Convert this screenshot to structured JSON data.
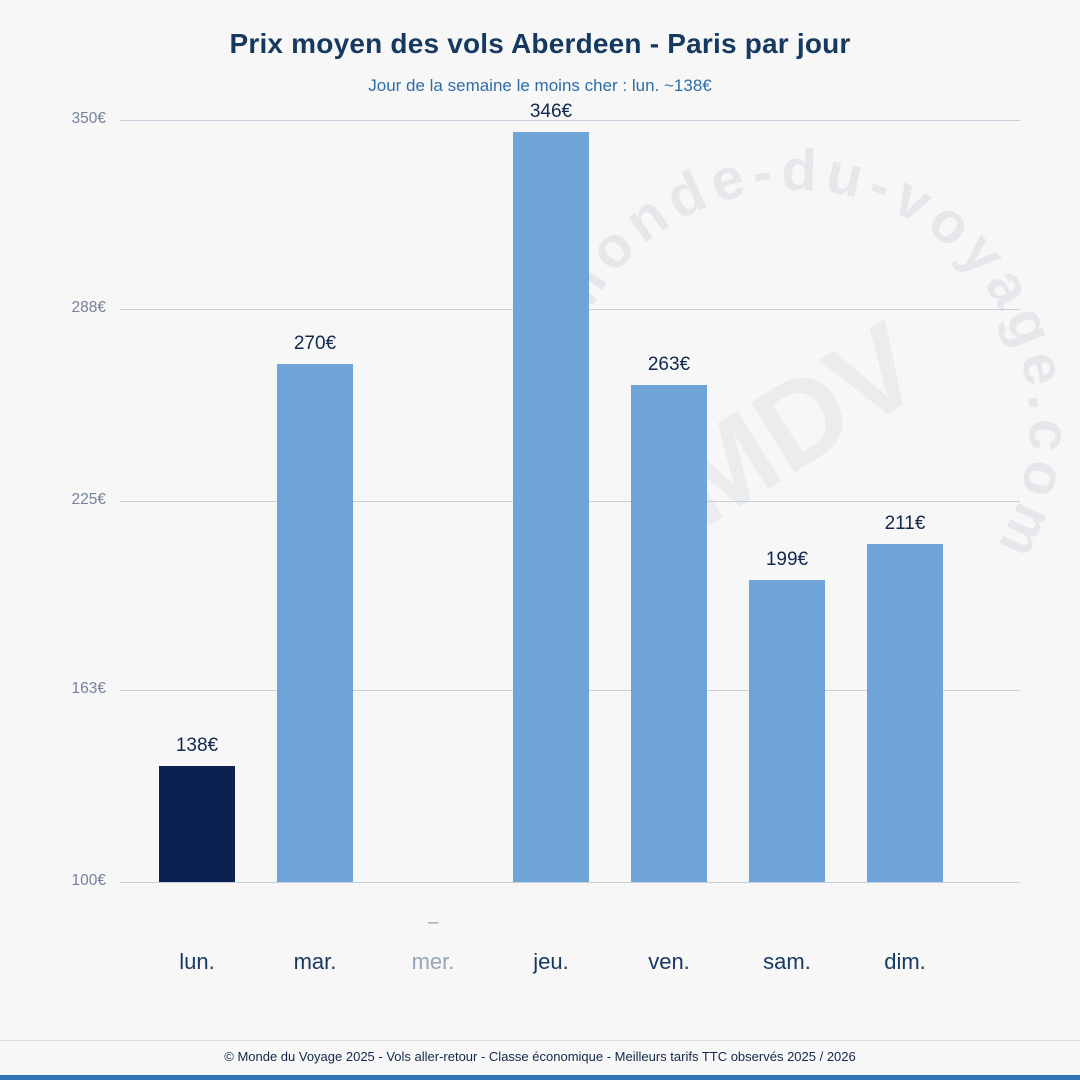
{
  "header": {
    "title": "Prix moyen des vols Aberdeen - Paris par jour",
    "subtitle": "Jour de la semaine le moins cher : lun. ~138€"
  },
  "chart_data": {
    "type": "bar",
    "title": "Prix moyen des vols Aberdeen - Paris par jour",
    "subtitle": "Jour de la semaine le moins cher : lun. ~138€",
    "categories": [
      "lun.",
      "mar.",
      "mer.",
      "jeu.",
      "ven.",
      "sam.",
      "dim."
    ],
    "values": [
      138,
      270,
      null,
      346,
      263,
      199,
      211
    ],
    "value_labels": [
      "138€",
      "270€",
      "–",
      "346€",
      "263€",
      "199€",
      "211€"
    ],
    "highlight_index": 0,
    "missing_index": 2,
    "xlabel": "",
    "ylabel": "",
    "ylim": [
      100,
      350
    ],
    "yticks": [
      350,
      288,
      225,
      163,
      100
    ],
    "ytick_labels": [
      "350€",
      "288€",
      "225€",
      "163€",
      "100€"
    ],
    "grid": true,
    "legend": "none",
    "bar_color": "#6fa4d9",
    "highlight_color": "#0c2150",
    "currency": "€"
  },
  "watermark": {
    "ring_text": "www.monde-du-voyage.com",
    "center_text": "MDV"
  },
  "footer": {
    "text": "© Monde du Voyage 2025 - Vols aller-retour - Classe économique - Meilleurs tarifs TTC observés 2025 / 2026"
  }
}
